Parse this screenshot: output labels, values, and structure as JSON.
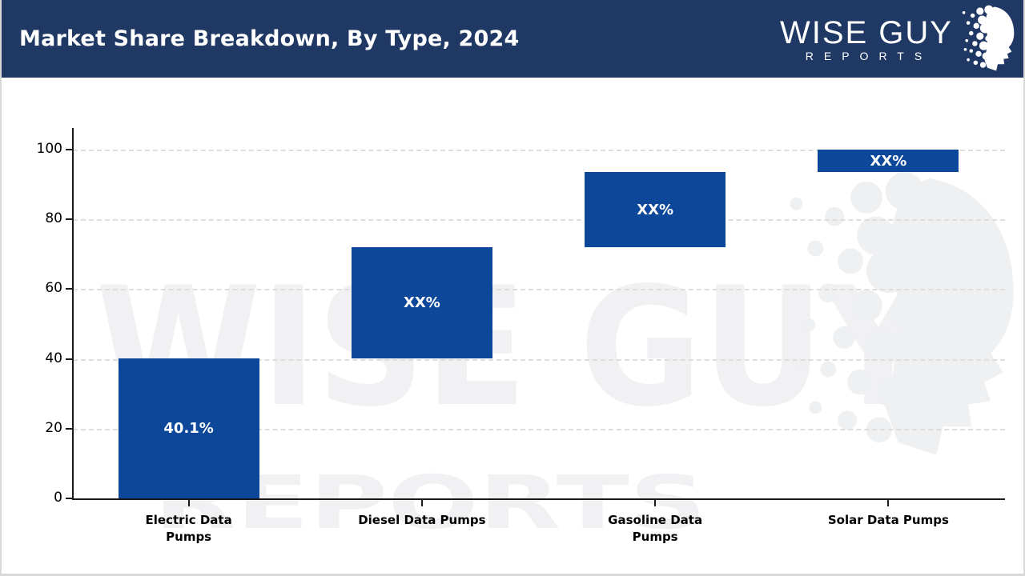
{
  "header": {
    "title": "Market Share Breakdown, By Type, 2024",
    "bg_color": "#1f3864",
    "logo": {
      "line1": "WISE GUY",
      "line2": "REPORTS"
    }
  },
  "watermark": {
    "line1": "WISE GUY",
    "line2": "REPORTS"
  },
  "chart_data": {
    "type": "bar",
    "subtype": "waterfall",
    "title": "Market Share Breakdown, By Type, 2024",
    "categories": [
      "Electric Data\nPumps",
      "Diesel Data Pumps",
      "Gasoline Data\nPumps",
      "Solar Data Pumps"
    ],
    "segments": [
      {
        "start": 0,
        "end": 40.1
      },
      {
        "start": 40.1,
        "end": 72
      },
      {
        "start": 72,
        "end": 93.5
      },
      {
        "start": 93.5,
        "end": 100
      }
    ],
    "bar_labels": [
      "40.1%",
      "XX%",
      "XX%",
      "XX%"
    ],
    "bar_color": "#0c4799",
    "yticks": [
      0,
      20,
      40,
      60,
      80,
      100
    ],
    "ylim": [
      0,
      106
    ],
    "xlabel": "",
    "ylabel": "",
    "grid": "horizontal-dashed",
    "legend": "none"
  }
}
